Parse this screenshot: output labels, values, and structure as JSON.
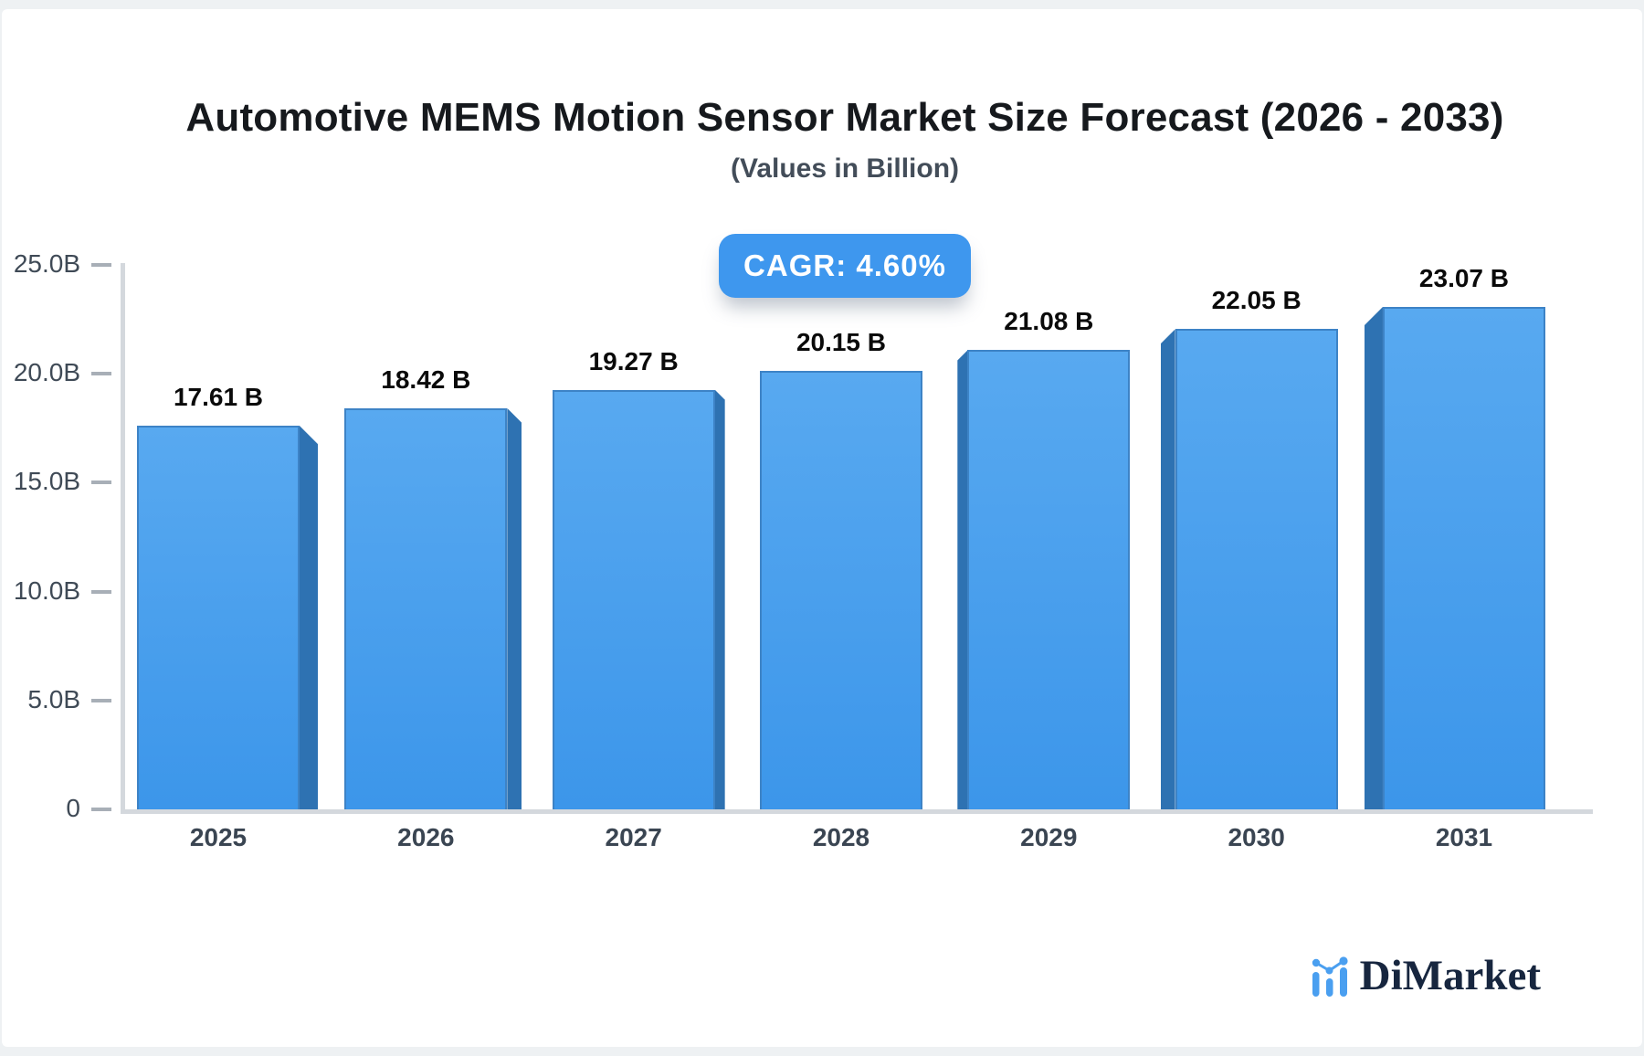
{
  "header": {
    "title": "Automotive MEMS Motion Sensor Market Size Forecast (2026 - 2033)",
    "subtitle": "(Values in Billion)"
  },
  "badge": {
    "label": "CAGR: 4.60%"
  },
  "chart_data": {
    "type": "bar",
    "title": "Automotive MEMS Motion Sensor Market Size Forecast (2026 - 2033)",
    "subtitle": "(Values in Billion)",
    "unit": "Billion",
    "cagr_percent": "4.60%",
    "categories": [
      "2025",
      "2026",
      "2027",
      "2028",
      "2029",
      "2030",
      "2031"
    ],
    "values": [
      17.61,
      18.42,
      19.27,
      20.15,
      21.08,
      22.05,
      23.07
    ],
    "value_labels": [
      "17.61 B",
      "18.42 B",
      "19.27 B",
      "20.15 B",
      "21.08 B",
      "22.05 B",
      "23.07 B"
    ],
    "xlabel": "",
    "ylabel": "",
    "ylim": [
      0,
      25
    ],
    "y_ticks": {
      "values": [
        0,
        5,
        10,
        15,
        20,
        25
      ],
      "labels": [
        "0",
        "5.0B",
        "10.0B",
        "15.0B",
        "20.0B",
        "25.0B"
      ]
    },
    "grid": false,
    "legend": false,
    "bar_style": "3d-perspective"
  },
  "logo": {
    "text": "DiMarket",
    "icon": "bar-chart-sparkline-icon"
  },
  "theme": {
    "accent": "#3e97ee",
    "page_bg": "#eef1f3",
    "card_bg": "#ffffff",
    "title_color": "#16191d",
    "subtitle_color": "#434d59",
    "value_color": "#0a0a0a",
    "xlabel_color": "#3a4552",
    "ylabel_color": "#3f4a56",
    "axis_line": "#d4d8dd",
    "tick": "#a8afb7",
    "bar_top": "#58a9f0",
    "bar_bottom": "#3c96ea",
    "bar_side": "#2e72b2",
    "bar_edge": "#3d83c6",
    "logo_blue": "#4a9ff0",
    "logo_navy": "#17263f"
  }
}
